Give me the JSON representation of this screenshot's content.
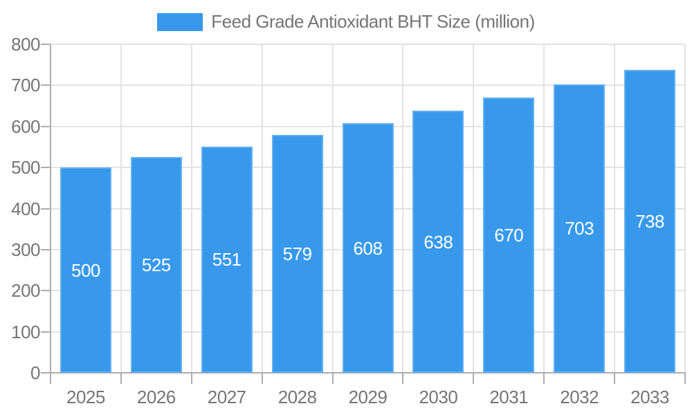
{
  "chart_data": {
    "type": "bar",
    "title": "Feed Grade Antioxidant BHT Size (million)",
    "legend_position": "top",
    "categories": [
      "2025",
      "2026",
      "2027",
      "2028",
      "2029",
      "2030",
      "2031",
      "2032",
      "2033"
    ],
    "values": [
      500,
      525,
      551,
      579,
      608,
      638,
      670,
      703,
      738
    ],
    "xlabel": "",
    "ylabel": "",
    "ylim": [
      0,
      800
    ],
    "y_ticks": [
      0,
      100,
      200,
      300,
      400,
      500,
      600,
      700,
      800
    ],
    "grid": true,
    "bar_label_position": "inside-center",
    "colors": {
      "bar": "#3899EC",
      "bar_label": "#FFFFFF",
      "grid": "#E3E3E3",
      "axis": "#ADADAD",
      "tick_text": "#757575"
    }
  }
}
